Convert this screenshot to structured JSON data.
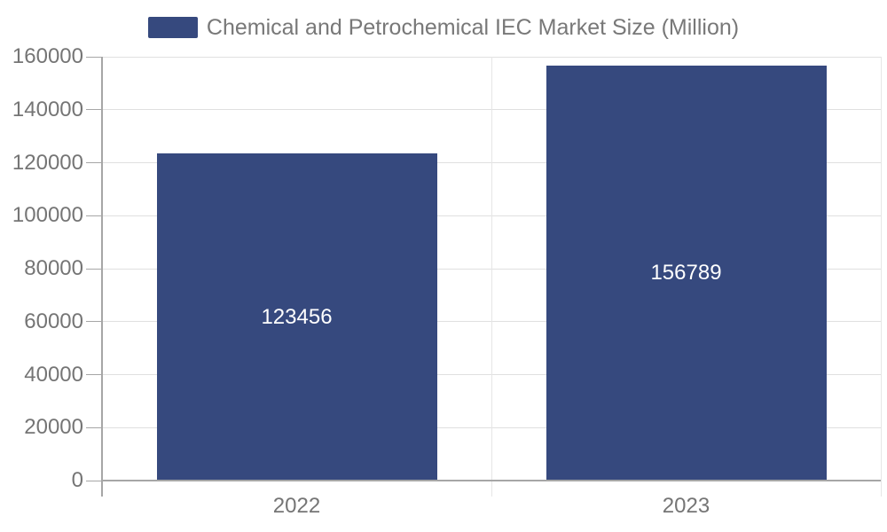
{
  "legend": {
    "label": "Chemical and Petrochemical IEC Market Size (Million)"
  },
  "chart_data": {
    "type": "bar",
    "title": "Chemical and Petrochemical IEC Market Size (Million)",
    "categories": [
      "2022",
      "2023"
    ],
    "values": [
      123456,
      156789
    ],
    "series": [
      {
        "name": "Chemical and Petrochemical IEC Market Size (Million)",
        "values": [
          123456,
          156789
        ]
      }
    ],
    "xlabel": "",
    "ylabel": "",
    "ylim": [
      0,
      160000
    ],
    "ytick_step": 20000,
    "yticks": [
      0,
      20000,
      40000,
      60000,
      80000,
      100000,
      120000,
      140000,
      160000
    ],
    "legend_position": "top",
    "grid": true,
    "data_label_position": "inside-center",
    "colors": {
      "bar": "#36497E",
      "bar_label": "#FFFFFF",
      "legend_text": "#787878",
      "axis_text": "#757575",
      "grid_line": "#E0E0E0",
      "split_line": "#E6E6E6",
      "axis_line": "#A6A6A6",
      "background": "#FFFFFF"
    }
  }
}
